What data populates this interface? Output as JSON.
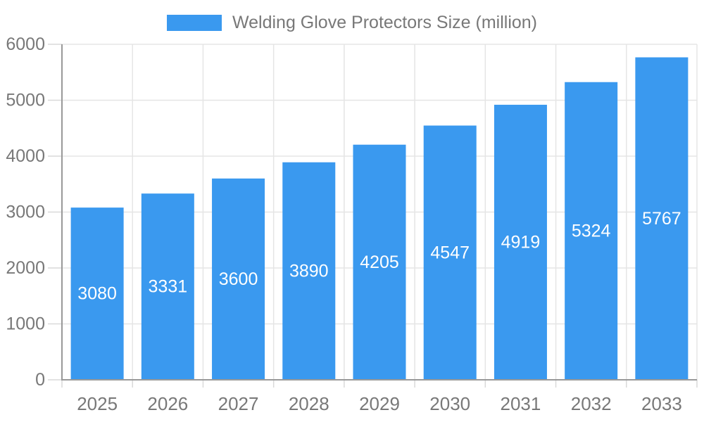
{
  "chart_data": {
    "type": "bar",
    "title": "",
    "legend": "Welding Glove Protectors Size (million)",
    "legend_position": "top-center",
    "categories": [
      "2025",
      "2026",
      "2027",
      "2028",
      "2029",
      "2030",
      "2031",
      "2032",
      "2033"
    ],
    "values": [
      3080,
      3331,
      3600,
      3890,
      4205,
      4547,
      4919,
      5324,
      5767
    ],
    "xlabel": "",
    "ylabel": "",
    "ylim": [
      0,
      6000
    ],
    "yticks": [
      0,
      1000,
      2000,
      3000,
      4000,
      5000,
      6000
    ],
    "grid": true,
    "bar_labels_inside": true,
    "colors": {
      "bar": "#3A99EF",
      "bar_label": "#FFFFFF",
      "axis_text": "#787878",
      "grid_line": "#E5E5E5",
      "axis_line": "#999999"
    }
  }
}
